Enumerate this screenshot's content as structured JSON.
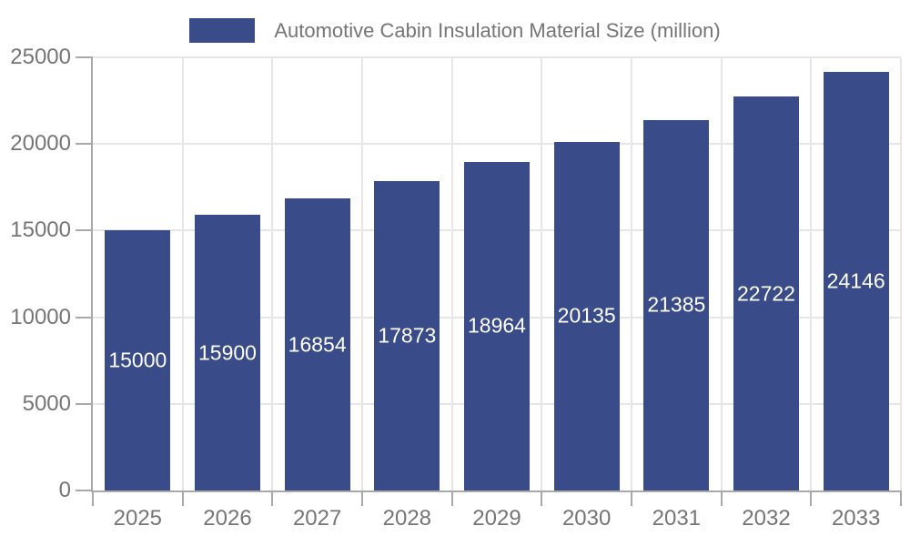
{
  "chart_data": {
    "type": "bar",
    "series_name": "Automotive Cabin Insulation Material Size (million)",
    "categories": [
      "2025",
      "2026",
      "2027",
      "2028",
      "2029",
      "2030",
      "2031",
      "2032",
      "2033"
    ],
    "values": [
      15000,
      15900,
      16854,
      17873,
      18964,
      20135,
      21385,
      22722,
      24146
    ],
    "xlabel": "",
    "ylabel": "",
    "ylim": [
      0,
      25000
    ],
    "yticks": [
      0,
      5000,
      10000,
      15000,
      20000,
      25000
    ],
    "grid": "both",
    "legend_position": "top-center",
    "value_labels_position": "inside-center",
    "colors": {
      "bar": "#3a4b8a",
      "value_label": "#ffffff",
      "axis_label": "#757575",
      "legend_text": "#757575",
      "gridline": "#e6e6e6",
      "axis_line": "#a9a9a9",
      "background": "#ffffff"
    }
  }
}
